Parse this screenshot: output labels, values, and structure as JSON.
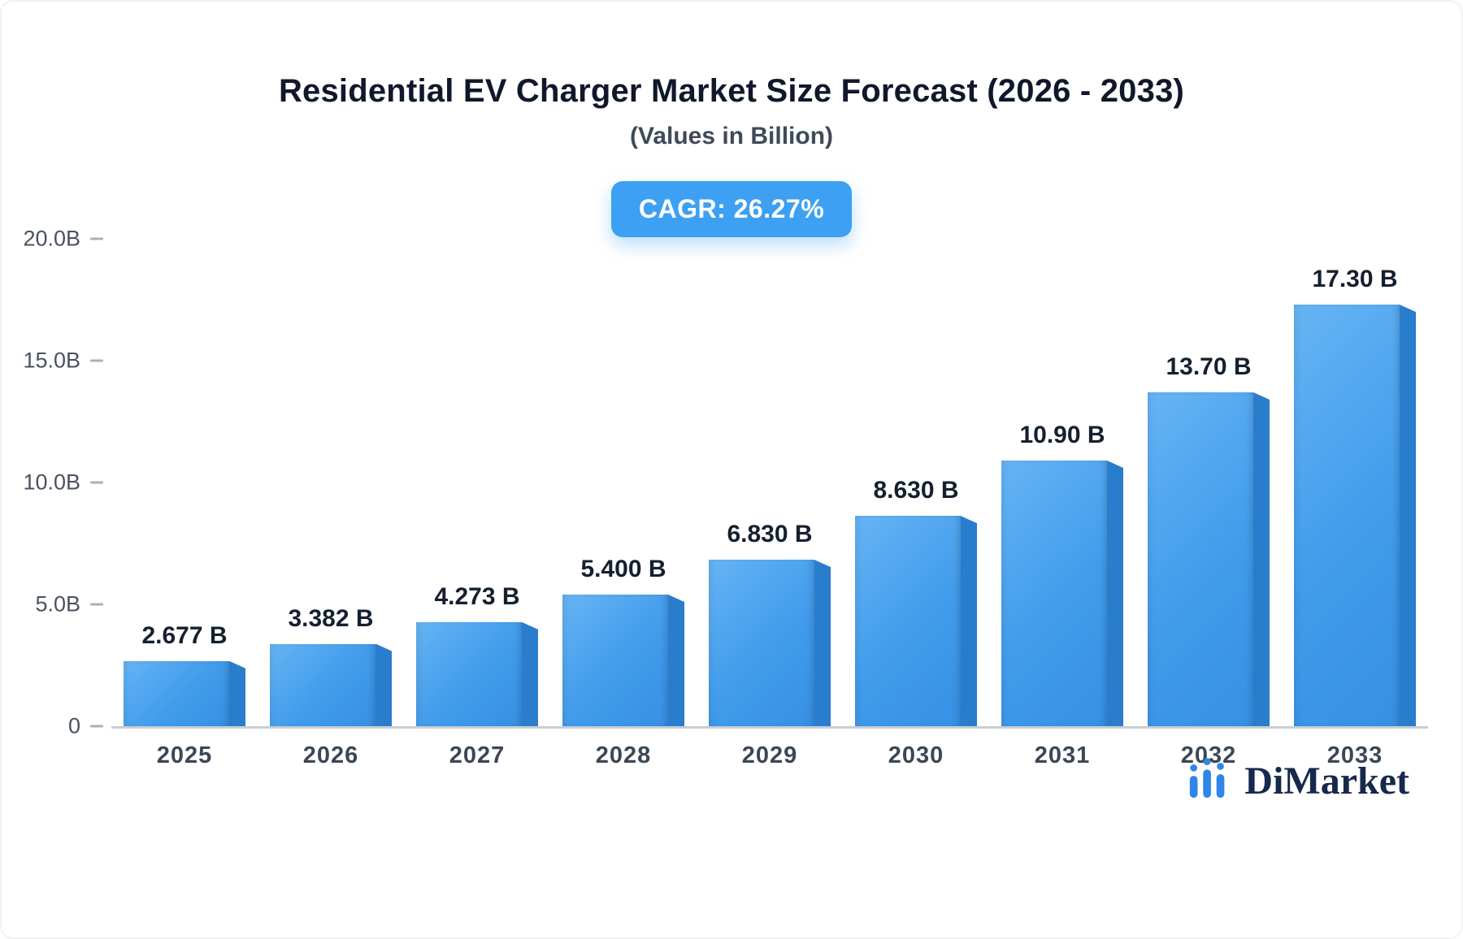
{
  "header": {
    "title": "Residential EV Charger Market Size Forecast (2026 - 2033)",
    "subtitle": "(Values in Billion)",
    "cagr_badge": "CAGR: 26.27%"
  },
  "logo": {
    "text": "DiMarket",
    "icon": "bar-chart-dots-icon",
    "icon_color": "#2f86e8",
    "text_color": "#16294d"
  },
  "chart_data": {
    "type": "bar",
    "title": "Residential EV Charger Market Size Forecast (2026 - 2033)",
    "subtitle": "(Values in Billion)",
    "xlabel": "",
    "ylabel": "",
    "categories": [
      "2025",
      "2026",
      "2027",
      "2028",
      "2029",
      "2030",
      "2031",
      "2032",
      "2033"
    ],
    "values": [
      2.677,
      3.382,
      4.273,
      5.4,
      6.83,
      8.63,
      10.9,
      13.7,
      17.3
    ],
    "value_labels": [
      "2.677 B",
      "3.382 B",
      "4.273 B",
      "5.400 B",
      "6.830 B",
      "8.630 B",
      "10.90 B",
      "13.70 B",
      "17.30 B"
    ],
    "ylim": [
      0,
      20
    ],
    "yticks": [
      0,
      5,
      10,
      15,
      20
    ],
    "ytick_labels": [
      "0",
      "5.0B",
      "10.0B",
      "15.0B",
      "20.0B"
    ],
    "grid": false,
    "legend": "none",
    "bar_front_color_top": "#66b4f4",
    "bar_front_color_bottom": "#3790e4",
    "bar_side_color": "#2a7ccd",
    "axis_line_color": "#c9ced4"
  }
}
